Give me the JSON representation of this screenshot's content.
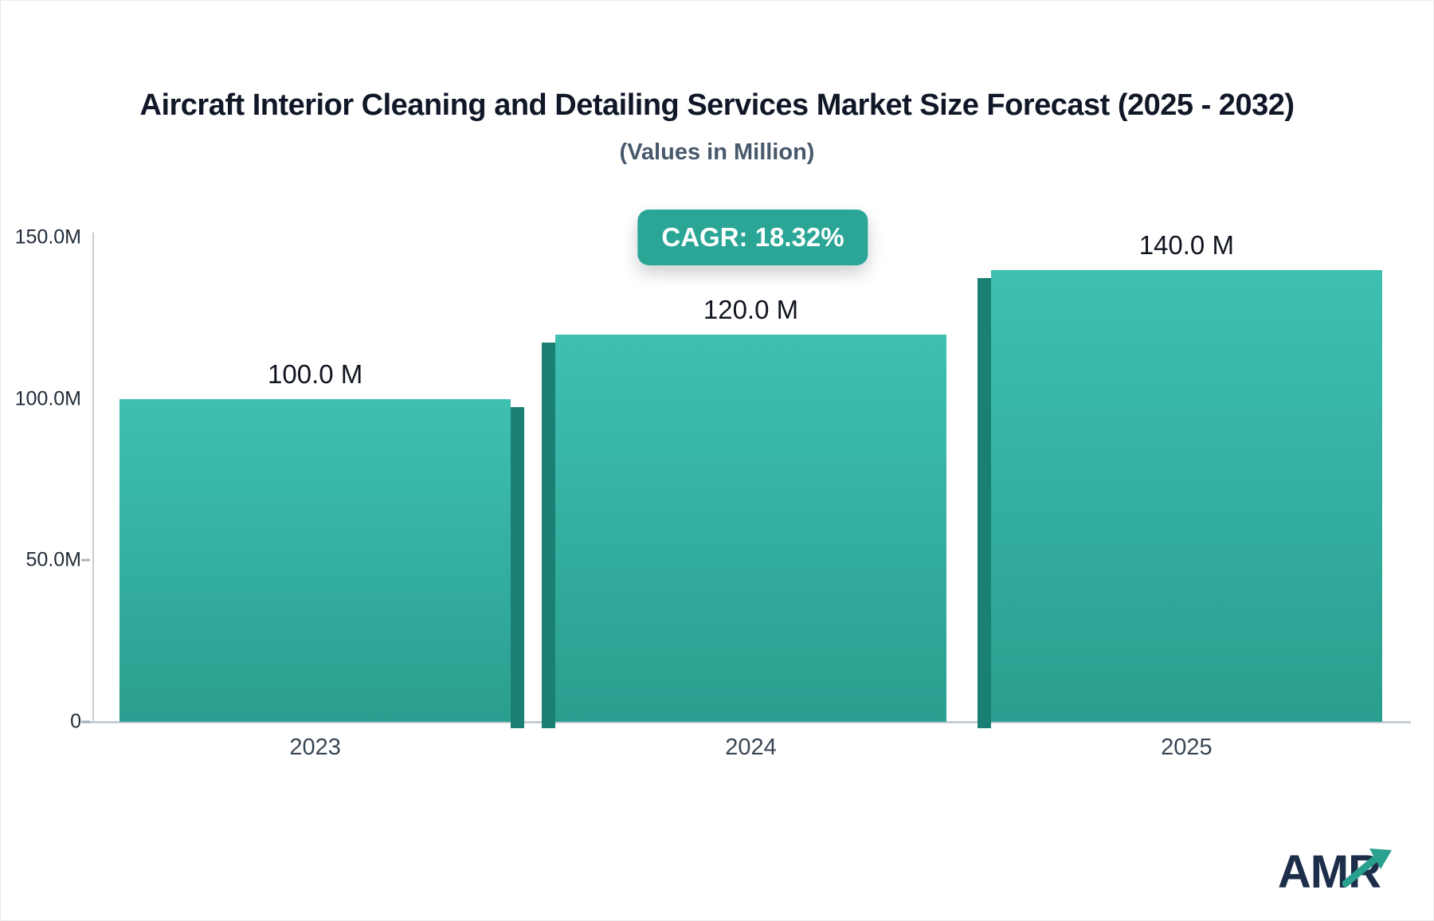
{
  "header": {
    "title": "Aircraft Interior Cleaning and Detailing Services Market Size Forecast (2025 - 2032)",
    "subtitle": "(Values in Million)"
  },
  "cagr_badge": "CAGR: 18.32%",
  "chart_data": {
    "type": "bar",
    "title": "Aircraft Interior Cleaning and Detailing Services Market Size Forecast (2025 - 2032)",
    "subtitle": "(Values in Million)",
    "unit": "Million",
    "cagr": "18.32%",
    "categories": [
      "2023",
      "2024",
      "2025"
    ],
    "values": [
      100.0,
      120.0,
      140.0
    ],
    "value_labels": [
      "100.0 M",
      "120.0 M",
      "140.0 M"
    ],
    "ylim": [
      0,
      150
    ],
    "yticks": [
      {
        "value": 0,
        "label": "0",
        "tick": true
      },
      {
        "value": 50,
        "label": "50.0M",
        "tick": true
      },
      {
        "value": 100,
        "label": "100.0M",
        "tick": false
      },
      {
        "value": 150,
        "label": "150.0M",
        "tick": false
      }
    ],
    "grid": false,
    "legend": "none",
    "colors": {
      "bar_top": "#3ec0b1",
      "bar_bottom": "#2a9e8f",
      "bar_side": "#1a8073",
      "badge_bg": "#2aa596",
      "axis": "#c6cdd4",
      "accent": "#2aa08f"
    }
  },
  "logo": {
    "text": "AMR"
  }
}
